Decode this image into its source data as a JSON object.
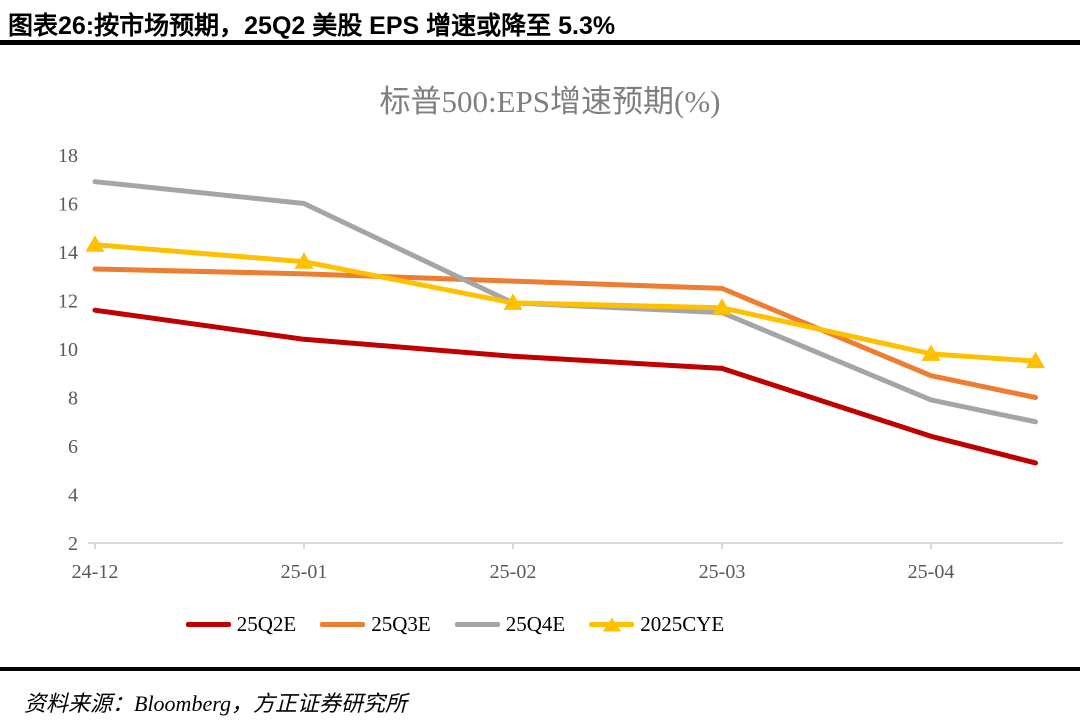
{
  "header": {
    "title": "图表26:按市场预期，25Q2 美股 EPS 增速或降至 5.3%"
  },
  "source": {
    "text": "资料来源：Bloomberg，方正证券研究所"
  },
  "chart_data": {
    "type": "line",
    "title": "标普500:EPS增速预期(%)",
    "xlabel": "",
    "ylabel": "",
    "ylim": [
      2,
      18
    ],
    "y_ticks": [
      2,
      4,
      6,
      8,
      10,
      12,
      14,
      16,
      18
    ],
    "x_tick_labels": [
      "24-12",
      "25-01",
      "25-02",
      "25-03",
      "25-04"
    ],
    "x": [
      0,
      1,
      2,
      3,
      4,
      4.5
    ],
    "series": [
      {
        "name": "25Q2E",
        "color": "#C00000",
        "marker": "none",
        "values": [
          11.6,
          10.4,
          9.7,
          9.2,
          6.4,
          5.3
        ]
      },
      {
        "name": "25Q3E",
        "color": "#ED7D31",
        "marker": "none",
        "values": [
          13.3,
          13.1,
          12.8,
          12.5,
          8.9,
          8.0
        ]
      },
      {
        "name": "25Q4E",
        "color": "#A5A5A5",
        "marker": "none",
        "values": [
          16.9,
          16.0,
          11.9,
          11.5,
          7.9,
          7.0
        ]
      },
      {
        "name": "2025CYE",
        "color": "#FFC000",
        "marker": "triangle",
        "values": [
          14.3,
          13.6,
          11.9,
          11.7,
          9.8,
          9.5
        ]
      }
    ],
    "grid": false,
    "legend_position": "bottom",
    "axis_color": "#D9D9D9",
    "tick_label_color": "#595959",
    "title_color": "#7F7F7F"
  }
}
